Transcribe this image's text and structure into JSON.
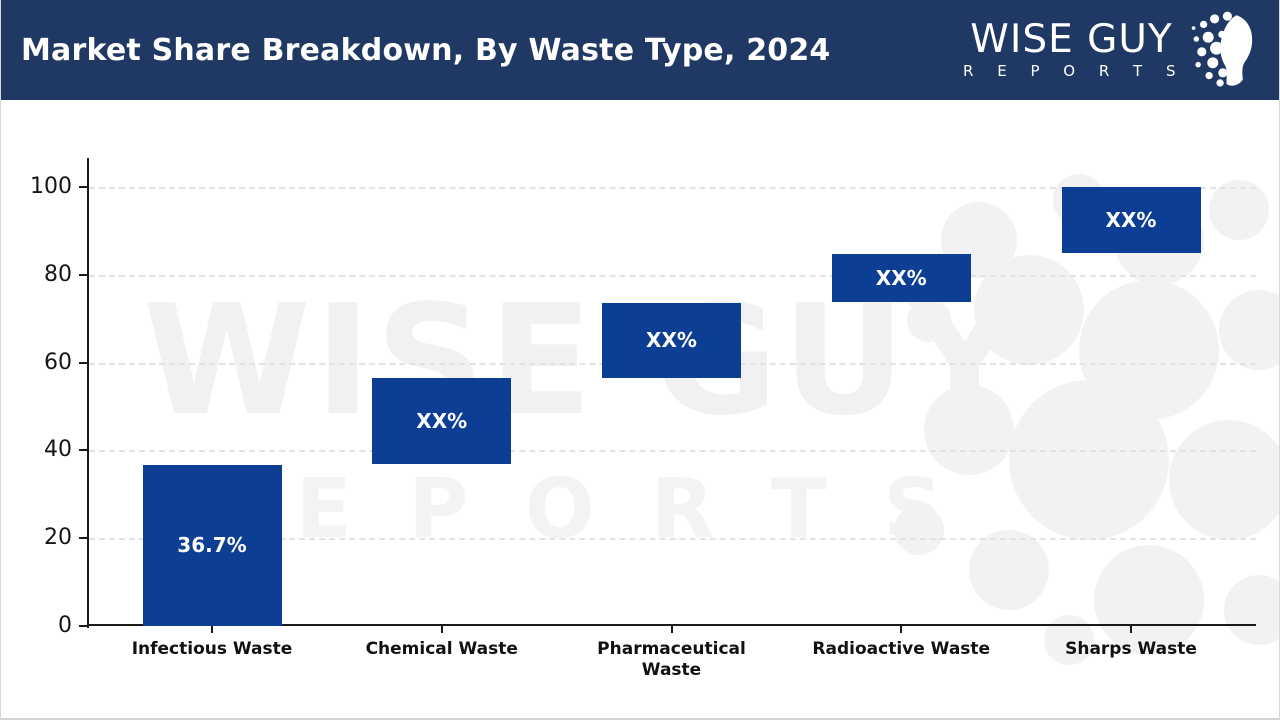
{
  "header": {
    "title": "Market Share Breakdown, By Waste Type, 2024",
    "brand": {
      "line1": "WISE GUY",
      "line2": "R E P O R T S"
    },
    "bg_color": "#1f3864"
  },
  "watermark": {
    "line1": "WISE GUY",
    "line2": "R E P O R T S"
  },
  "chart_data": {
    "type": "bar",
    "subtype": "waterfall",
    "title": "Market Share Breakdown, By Waste Type, 2024",
    "xlabel": "",
    "ylabel": "",
    "ylim": [
      0,
      106
    ],
    "y_ticks": [
      0,
      20,
      40,
      60,
      80,
      100
    ],
    "grid": "horizontal-dashed",
    "legend": "none",
    "bar_color": "#0c3f94",
    "value_label_color": "#ffffff",
    "categories": [
      "Infectious Waste",
      "Chemical Waste",
      "Pharmaceutical Waste",
      "Radioactive Waste",
      "Sharps Waste"
    ],
    "segments": [
      {
        "category": "Infectious Waste",
        "tick_label": "Infectious Waste",
        "start": 0,
        "end": 36.7,
        "label": "36.7%"
      },
      {
        "category": "Chemical Waste",
        "tick_label": "Chemical Waste",
        "start": 36.9,
        "end": 56.5,
        "label": "XX%"
      },
      {
        "category": "Pharmaceutical Waste",
        "tick_label": "Pharmaceutical\nWaste",
        "start": 56.5,
        "end": 73.6,
        "label": "XX%"
      },
      {
        "category": "Radioactive Waste",
        "tick_label": "Radioactive Waste",
        "start": 73.8,
        "end": 84.7,
        "label": "XX%"
      },
      {
        "category": "Sharps Waste",
        "tick_label": "Sharps Waste",
        "start": 85.0,
        "end": 100.0,
        "label": "XX%"
      }
    ]
  }
}
